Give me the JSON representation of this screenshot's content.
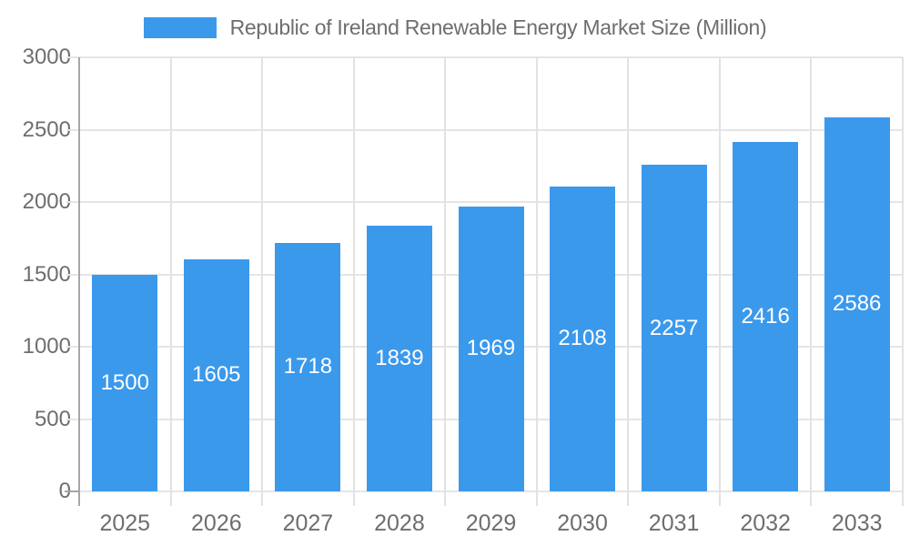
{
  "legend": {
    "label": "Republic of Ireland Renewable Energy Market Size (Million)"
  },
  "chart_data": {
    "type": "bar",
    "title": "Republic of Ireland Renewable Energy Market Size (Million)",
    "categories": [
      "2025",
      "2026",
      "2027",
      "2028",
      "2029",
      "2030",
      "2031",
      "2032",
      "2033"
    ],
    "values": [
      1500,
      1605,
      1718,
      1839,
      1969,
      2108,
      2257,
      2416,
      2586
    ],
    "bar_labels": [
      "1500",
      "1605",
      "1718",
      "1839",
      "1969",
      "2108",
      "2257",
      "2416",
      "2586"
    ],
    "xlabel": "",
    "ylabel": "",
    "ylim": [
      0,
      3000
    ],
    "ytick_interval": 500,
    "ytick_labels": [
      "0",
      "500",
      "1000",
      "1500",
      "2000",
      "2500",
      "3000"
    ],
    "grid": true,
    "legend_position": "top",
    "colors": {
      "bar": "#3b99ec",
      "bar_label_text": "#ffffff",
      "axis_text": "#6e6e6e",
      "gridline": "#e5e5e5",
      "axis_line": "#a6a6a6",
      "background": "#ffffff"
    }
  }
}
